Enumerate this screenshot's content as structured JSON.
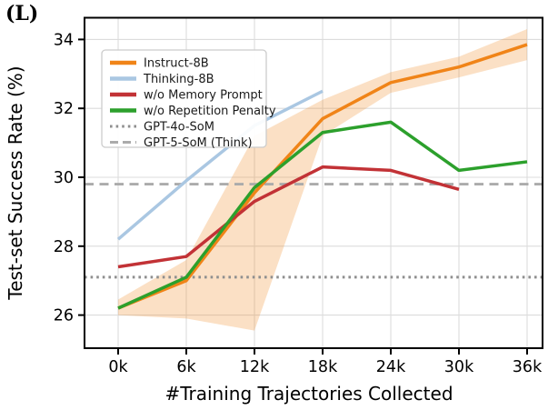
{
  "figure": {
    "corner_label": "(L)"
  },
  "chart_data": {
    "type": "line",
    "title": "",
    "xlabel": "#Training Trajectories Collected",
    "ylabel": "Test-set Success Rate (%)",
    "x": [
      0,
      6,
      12,
      18,
      24,
      30,
      36
    ],
    "xtick_labels": [
      "0k",
      "6k",
      "12k",
      "18k",
      "24k",
      "30k",
      "36k"
    ],
    "yticks": [
      26,
      28,
      30,
      32,
      34
    ],
    "ytick_labels": [
      "26",
      "28",
      "30",
      "32",
      "34"
    ],
    "xlim_k": [
      -3.0,
      37.4
    ],
    "ylim": [
      25.0,
      34.6
    ],
    "grid": true,
    "legend_position": "upper-left",
    "colors": {
      "grid": "#dcdcdc",
      "spine": "#000000",
      "band_fill": "#f08418",
      "tick_text": "#000000",
      "legend_border": "#cccccc",
      "legend_bg": "#ffffff"
    },
    "series": [
      {
        "name": "Instruct-8B",
        "type": "line",
        "color": "#f08418",
        "x": [
          0,
          6,
          12,
          18,
          24,
          30,
          36
        ],
        "values": [
          26.2,
          27.0,
          29.55,
          31.7,
          32.75,
          33.2,
          33.85
        ],
        "band": {
          "upper": [
            26.45,
            27.6,
            31.2,
            32.25,
            33.05,
            33.5,
            34.3
          ],
          "lower": [
            26.0,
            25.9,
            25.55,
            31.2,
            32.45,
            32.9,
            33.4
          ]
        }
      },
      {
        "name": "Thinking-8B",
        "type": "line",
        "color": "#aac7e2",
        "x": [
          0,
          6,
          12,
          18
        ],
        "values": [
          28.2,
          29.9,
          31.5,
          32.5
        ]
      },
      {
        "name": "w/o Memory Prompt",
        "type": "line",
        "color": "#c23236",
        "x": [
          0,
          6,
          12,
          18,
          24,
          30
        ],
        "values": [
          27.4,
          27.7,
          29.3,
          30.3,
          30.2,
          29.65
        ]
      },
      {
        "name": "w/o Repetition Penalty",
        "type": "line",
        "color": "#2ca02c",
        "x": [
          0,
          6,
          12,
          18,
          24,
          30,
          36
        ],
        "values": [
          26.2,
          27.1,
          29.7,
          31.3,
          31.6,
          30.2,
          30.45
        ]
      },
      {
        "name": "GPT-4o-SoM",
        "type": "hline",
        "style": "dotted",
        "color": "#8f8f8f",
        "value": 27.1
      },
      {
        "name": "GPT-5-SoM (Think)",
        "type": "hline",
        "style": "dashed",
        "color": "#ababab",
        "value": 29.8
      }
    ]
  }
}
